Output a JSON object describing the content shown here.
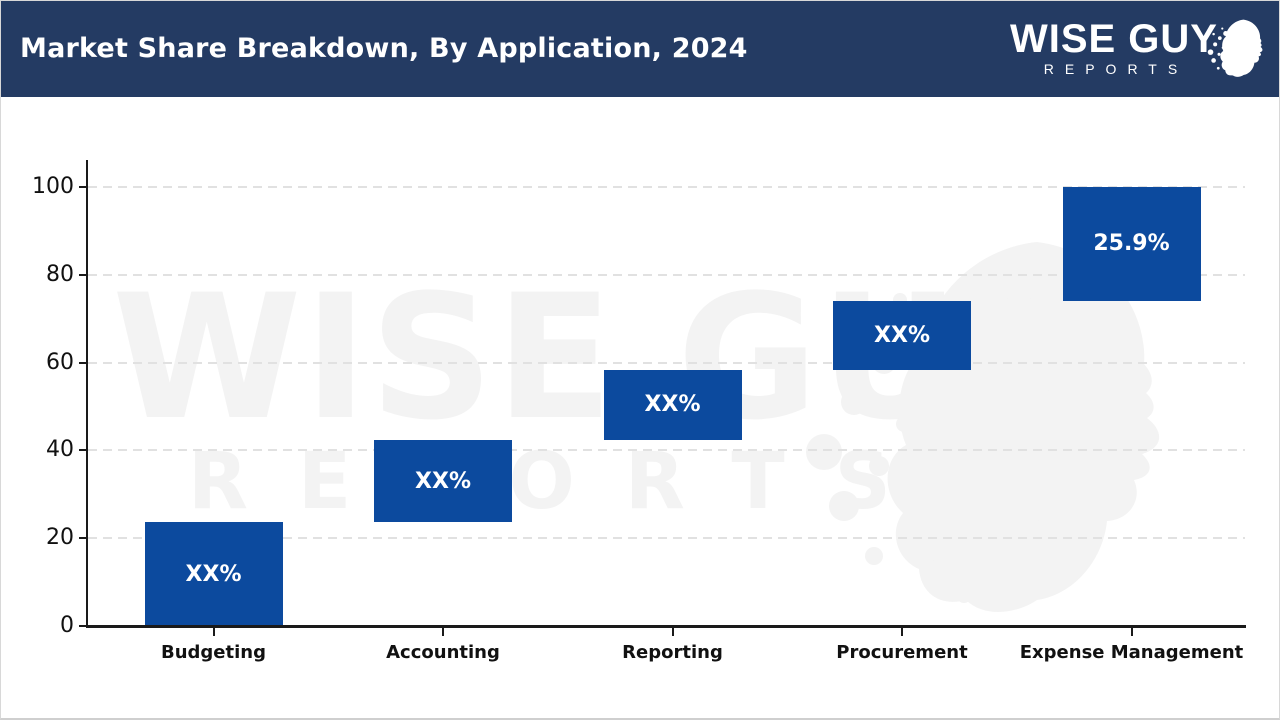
{
  "header": {
    "title": "Market Share Breakdown, By Application, 2024",
    "bg_color": "#243b63",
    "logo": {
      "line1": "WISE GUY",
      "line2": "REPORTS"
    }
  },
  "watermark": {
    "line1": "WISE GUY",
    "line2": "REPORTS"
  },
  "chart_data": {
    "type": "bar",
    "subtype": "waterfall",
    "title": "Market Share Breakdown, By Application, 2024",
    "categories": [
      "Budgeting",
      "Accounting",
      "Reporting",
      "Procurement",
      "Expense Management"
    ],
    "series": [
      {
        "name": "Market Share",
        "segments": [
          {
            "category": "Budgeting",
            "start": 0,
            "end": 23.6,
            "value": 23.6,
            "label": "XX%"
          },
          {
            "category": "Accounting",
            "start": 23.6,
            "end": 42.4,
            "value": 18.8,
            "label": "XX%"
          },
          {
            "category": "Reporting",
            "start": 42.4,
            "end": 58.4,
            "value": 16.0,
            "label": "XX%"
          },
          {
            "category": "Procurement",
            "start": 58.4,
            "end": 74.1,
            "value": 15.7,
            "label": "XX%"
          },
          {
            "category": "Expense Management",
            "start": 74.1,
            "end": 100,
            "value": 25.9,
            "label": "25.9%"
          }
        ]
      }
    ],
    "xlabel": "",
    "ylabel": "",
    "ylim": [
      0,
      100
    ],
    "yticks": [
      0,
      20,
      40,
      60,
      80,
      100
    ],
    "grid": "dashed-horizontal",
    "legend": "none",
    "bar_color": "#0c4a9e",
    "bar_label_color": "#ffffff",
    "axis_color": "#1a1a1a"
  }
}
